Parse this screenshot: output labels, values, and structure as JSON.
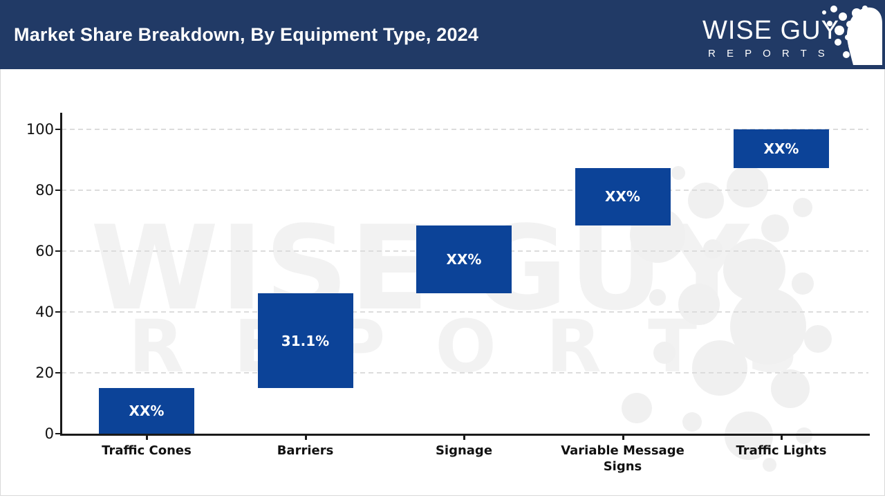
{
  "header": {
    "title": "Market Share Breakdown, By Equipment Type, 2024",
    "background_color": "#213a66",
    "logo": {
      "line1": "WISE GUY",
      "line2": "R E P O R T S"
    }
  },
  "watermark": {
    "line1": "WISE GUY",
    "line2": "REPORTS"
  },
  "chart_data": {
    "type": "bar",
    "subtype": "waterfall",
    "title": "Market Share Breakdown, By Equipment Type, 2024",
    "xlabel": "",
    "ylabel": "",
    "categories": [
      "Traffic Cones",
      "Barriers",
      "Signage",
      "Variable Message Signs",
      "Traffic Lights"
    ],
    "segments": [
      {
        "category": "Traffic Cones",
        "start": 0,
        "end": 15.0,
        "label": "XX%"
      },
      {
        "category": "Barriers",
        "start": 15.0,
        "end": 46.1,
        "label": "31.1%"
      },
      {
        "category": "Signage",
        "start": 46.1,
        "end": 68.4,
        "label": "XX%"
      },
      {
        "category": "Variable Message Signs",
        "start": 68.4,
        "end": 87.3,
        "label": "XX%"
      },
      {
        "category": "Traffic Lights",
        "start": 87.3,
        "end": 100.0,
        "label": "XX%"
      }
    ],
    "y_ticks": [
      0,
      20,
      40,
      60,
      80,
      100
    ],
    "ylim": [
      0,
      105
    ],
    "grid": "horizontal dashed",
    "legend": "none",
    "bar_color": "#0c4398",
    "bar_label_color": "#ffffff",
    "axis_color": "#1a1a1a",
    "gridline_color": "#dcdcdc",
    "watermark_color": "#f2f2f2"
  }
}
